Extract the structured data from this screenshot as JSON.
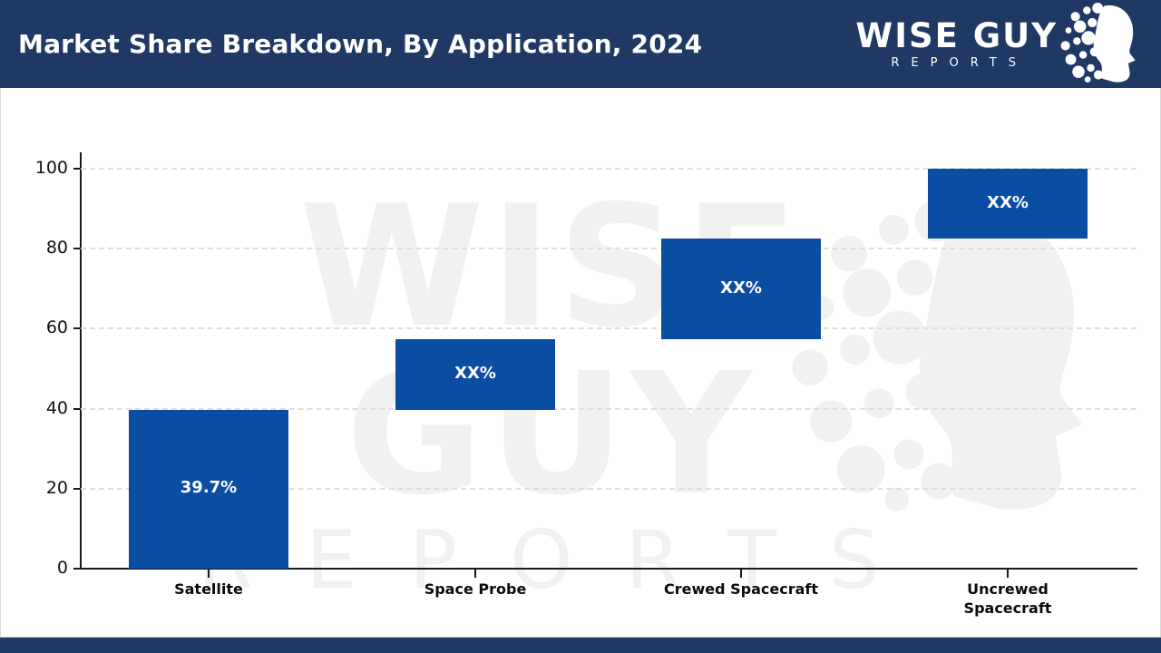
{
  "header": {
    "title": "Market Share Breakdown, By Application, 2024",
    "background": "#1f3864",
    "text_color": "#ffffff",
    "logo": {
      "line1": "WISE GUY",
      "line2": "REPORTS"
    }
  },
  "watermark": {
    "line1": "WISE GUY",
    "line2": "REPORTS"
  },
  "chart_data": {
    "type": "bar",
    "subtype": "waterfall",
    "title": "Market Share Breakdown, By Application, 2024",
    "categories": [
      "Satellite",
      "Space Probe",
      "Crewed Spacecraft",
      "Uncrewed Spacecraft"
    ],
    "category_label_lines": [
      [
        "Satellite"
      ],
      [
        "Space Probe"
      ],
      [
        "Crewed Spacecraft"
      ],
      [
        "Uncrewed",
        "Spacecraft"
      ]
    ],
    "bars": [
      {
        "category": "Satellite",
        "start": 0,
        "end": 39.7,
        "label": "39.7%"
      },
      {
        "category": "Space Probe",
        "start": 39.7,
        "end": 57.3,
        "label": "XX%"
      },
      {
        "category": "Crewed Spacecraft",
        "start": 57.3,
        "end": 82.5,
        "label": "XX%"
      },
      {
        "category": "Uncrewed Spacecraft",
        "start": 82.5,
        "end": 100,
        "label": "XX%"
      }
    ],
    "yticks": [
      0,
      20,
      40,
      60,
      80,
      100
    ],
    "ylim": [
      0,
      104
    ],
    "xlabel": "",
    "ylabel": "",
    "grid": true,
    "legend": false,
    "bar_color": "#0b4da2",
    "value_label_color": "#ffffff",
    "gridline_color": "#dedede",
    "axis_color": "#1a1a1a"
  },
  "footer": {
    "background": "#1f3864"
  }
}
